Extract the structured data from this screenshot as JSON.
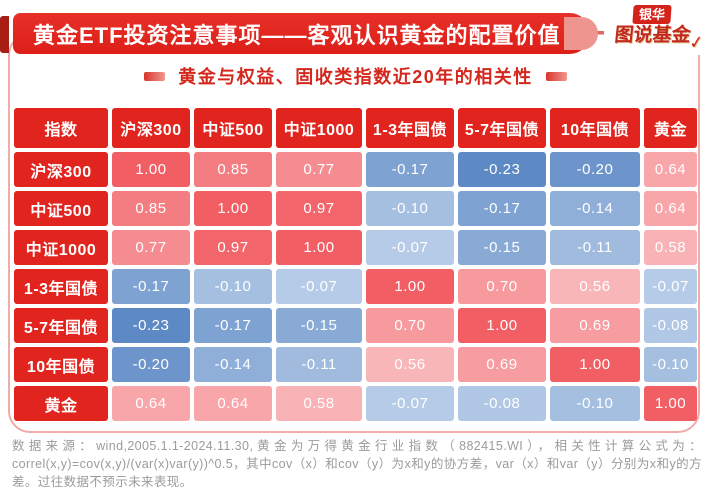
{
  "header": {
    "title": "黄金ETF投资注意事项——客观认识黄金的配置价值",
    "logo": {
      "brand": "银华",
      "series": "图说基金",
      "check": "✓"
    }
  },
  "subtitle": "黄金与权益、固收类指数近20年的相关性",
  "chart_data": {
    "type": "heatmap",
    "title": "黄金与权益、固收类指数近20年的相关性",
    "corner_label": "指数",
    "columns": [
      "沪深300",
      "中证500",
      "中证1000",
      "1-3年国债",
      "5-7年国债",
      "10年国债",
      "黄金"
    ],
    "rows": [
      "沪深300",
      "中证500",
      "中证1000",
      "1-3年国债",
      "5-7年国债",
      "10年国债",
      "黄金"
    ],
    "values": [
      [
        1.0,
        0.85,
        0.77,
        -0.17,
        -0.23,
        -0.2,
        0.64
      ],
      [
        0.85,
        1.0,
        0.97,
        -0.1,
        -0.17,
        -0.14,
        0.64
      ],
      [
        0.77,
        0.97,
        1.0,
        -0.07,
        -0.15,
        -0.11,
        0.58
      ],
      [
        -0.17,
        -0.1,
        -0.07,
        1.0,
        0.7,
        0.56,
        -0.07
      ],
      [
        -0.23,
        -0.17,
        -0.15,
        0.7,
        1.0,
        0.69,
        -0.08
      ],
      [
        -0.2,
        -0.14,
        -0.11,
        0.56,
        0.69,
        1.0,
        -0.1
      ],
      [
        0.64,
        0.64,
        0.58,
        -0.07,
        -0.08,
        -0.1,
        1.0
      ]
    ],
    "value_decimals": 2,
    "palette": {
      "header_bg": "#e2241e",
      "header_text": "#ffffff",
      "cell_text": "#ffffff",
      "positive_low": "#f9b6b9",
      "positive_high": "#f15f65",
      "positive_range": [
        0.56,
        1.0
      ],
      "negative_low": "#b6cbe7",
      "negative_high": "#5d89c4",
      "negative_range": [
        0.07,
        0.23
      ]
    }
  },
  "footnote": "数据来源：wind,2005.1.1-2024.11.30,黄金为万得黄金行业指数（882415.WI），相关性计算公式为：correl(x,y)=cov(x,y)/(var(x)var(y))^0.5，其中cov（x）和cov（y）为x和y的协方差，var（x）和var（y）分别为x和y的方差。过往数据不预示未来表现。",
  "colors": {
    "banner_red": "#e0251e",
    "banner_echo_pink": "#ef958f",
    "accent_dark_red": "#a81d14",
    "table_red": "#e2241e",
    "subtitle_red": "#d4281e",
    "card_border_pink": "#f0aca8",
    "logo_red": "#c2281e",
    "footnote_gray": "#9b9b9b"
  }
}
